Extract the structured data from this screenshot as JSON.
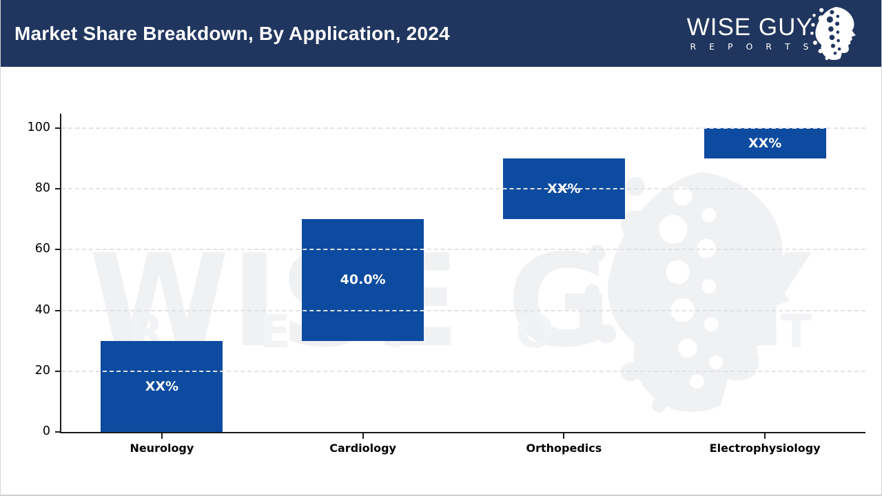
{
  "header": {
    "title": "Market Share Breakdown, By Application, 2024",
    "bg_color": "#20365f",
    "logo": {
      "line1": "WISE GUY",
      "line2": "R E P O R T S"
    }
  },
  "watermark": {
    "line1": "WISE GUY",
    "line2": "REPORTS"
  },
  "chart_data": {
    "type": "bar",
    "subtype": "floating-waterfall-segments",
    "title": "Market Share Breakdown, By Application, 2024",
    "categories": [
      "Neurology",
      "Cardiology",
      "Orthopedics",
      "Electrophysiology"
    ],
    "segments": [
      {
        "category": "Neurology",
        "start": 0,
        "end": 30,
        "label": "XX%"
      },
      {
        "category": "Cardiology",
        "start": 30,
        "end": 70,
        "label": "40.0%"
      },
      {
        "category": "Orthopedics",
        "start": 70,
        "end": 90,
        "label": "XX%"
      },
      {
        "category": "Electrophysiology",
        "start": 90,
        "end": 100,
        "label": "XX%"
      }
    ],
    "xlabel": "",
    "ylabel": "",
    "ylim": [
      0,
      105
    ],
    "yticks": [
      0,
      20,
      40,
      60,
      80,
      100
    ],
    "grid": "horizontal-dashed",
    "legend": "none",
    "bar_color": "#0d4ba0",
    "bar_label_color": "#ffffff"
  }
}
